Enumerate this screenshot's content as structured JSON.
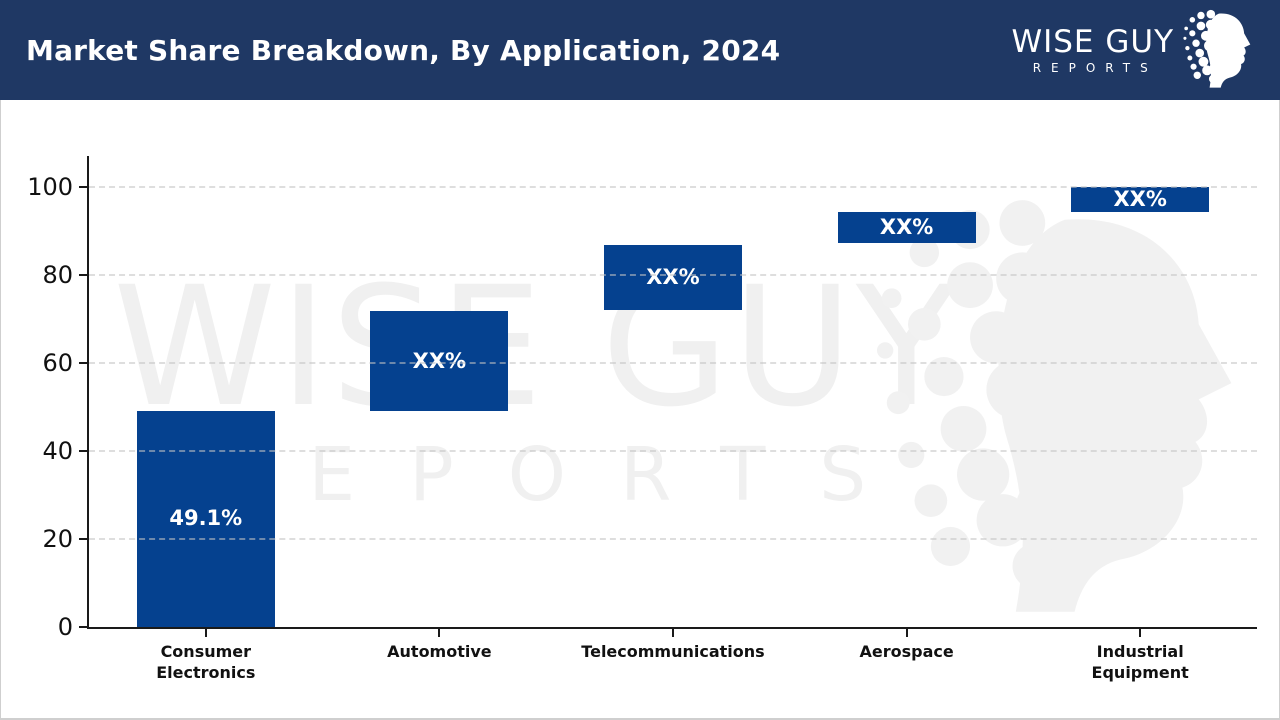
{
  "header": {
    "title": "Market Share Breakdown, By Application, 2024",
    "brand": {
      "line1": "WISE GUY",
      "line2": "REPORTS"
    },
    "bg_color": "#1f3864"
  },
  "icons": {
    "brand_face": "dotted-head-profile-icon"
  },
  "watermark": {
    "line1": "WISE GUY",
    "line2": "REPORTS",
    "color": "#f0f0f0"
  },
  "chart_data": {
    "type": "bar",
    "variant": "waterfall",
    "title": "Market Share Breakdown, By Application, 2024",
    "categories": [
      "Consumer Electronics",
      "Automotive",
      "Telecommunications",
      "Aerospace",
      "Industrial Equipment"
    ],
    "category_label_lines": [
      [
        "Consumer",
        "Electronics"
      ],
      [
        "Automotive"
      ],
      [
        "Telecommunications"
      ],
      [
        "Aerospace"
      ],
      [
        "Industrial",
        "Equipment"
      ]
    ],
    "segments": [
      {
        "category": "Consumer Electronics",
        "start": 0,
        "end": 49.1,
        "label": "49.1%"
      },
      {
        "category": "Automotive",
        "start": 49.1,
        "end": 71.8,
        "label": "XX%"
      },
      {
        "category": "Telecommunications",
        "start": 72.0,
        "end": 86.8,
        "label": "XX%"
      },
      {
        "category": "Aerospace",
        "start": 87.3,
        "end": 94.3,
        "label": "XX%"
      },
      {
        "category": "Industrial Equipment",
        "start": 94.3,
        "end": 100,
        "label": "XX%"
      }
    ],
    "yticks": [
      0,
      20,
      40,
      60,
      80,
      100
    ],
    "ylim": [
      0,
      106
    ],
    "xlabel": "",
    "ylabel": "",
    "grid": {
      "axis": "y",
      "style": "dashed",
      "color": "#c4c4c4"
    },
    "legend": "none",
    "bar_color": "#05418f",
    "bar_label_color": "#ffffff",
    "axis_color": "#1a1a1a"
  }
}
